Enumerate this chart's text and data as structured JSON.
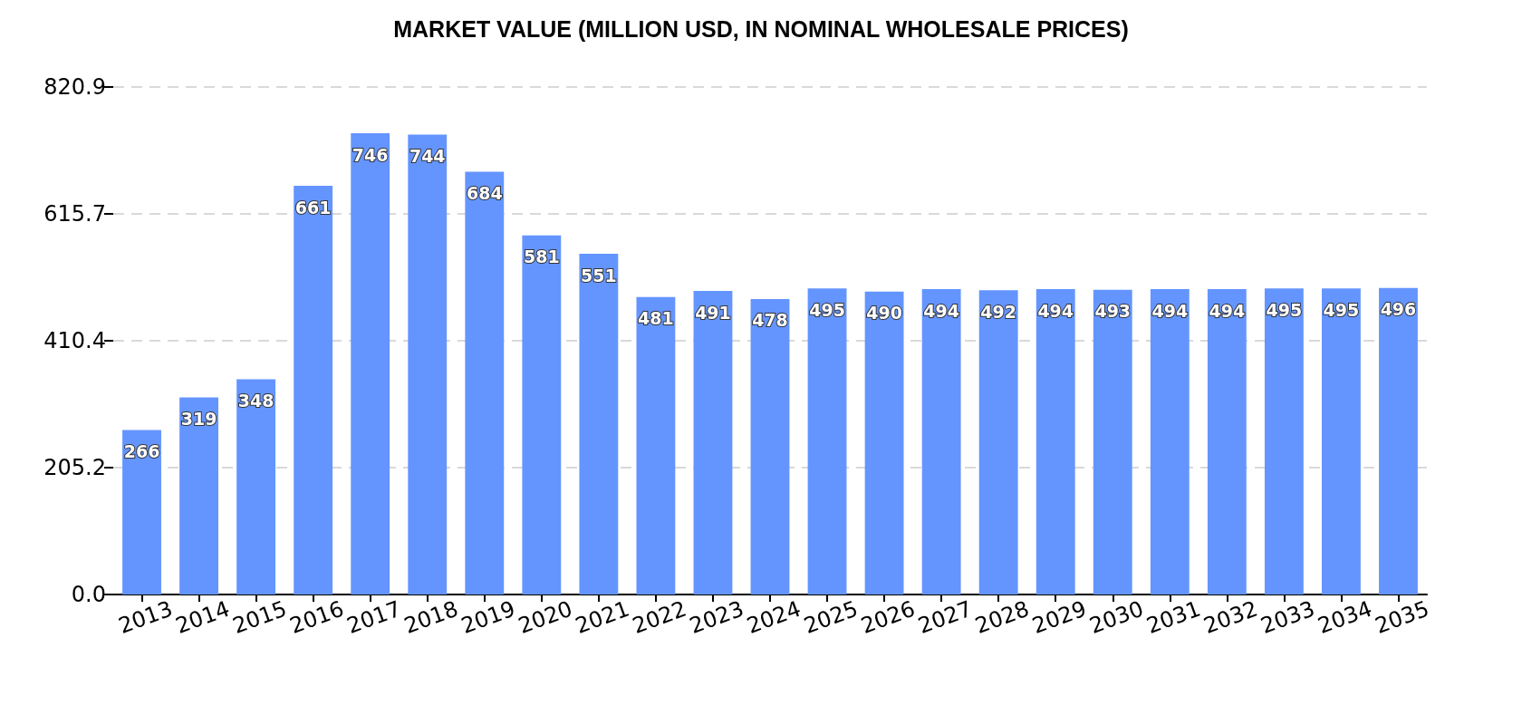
{
  "chart_data": {
    "type": "bar",
    "title": "MARKET VALUE (MILLION USD, IN NOMINAL WHOLESALE PRICES)",
    "categories": [
      "2013",
      "2014",
      "2015",
      "2016",
      "2017",
      "2018",
      "2019",
      "2020",
      "2021",
      "2022",
      "2023",
      "2024",
      "2025",
      "2026",
      "2027",
      "2028",
      "2029",
      "2030",
      "2031",
      "2032",
      "2033",
      "2034",
      "2035"
    ],
    "values": [
      266,
      319,
      348,
      661,
      746,
      744,
      684,
      581,
      551,
      481,
      491,
      478,
      495,
      490,
      494,
      492,
      494,
      493,
      494,
      494,
      495,
      495,
      496
    ],
    "color": "#6495ff",
    "ylim": [
      0,
      820.9
    ],
    "yticks": [
      {
        "value": 0,
        "label": "0.0"
      },
      205.2,
      410.4,
      615.7,
      820.9
    ],
    "grid": "y",
    "data_labels": true
  }
}
